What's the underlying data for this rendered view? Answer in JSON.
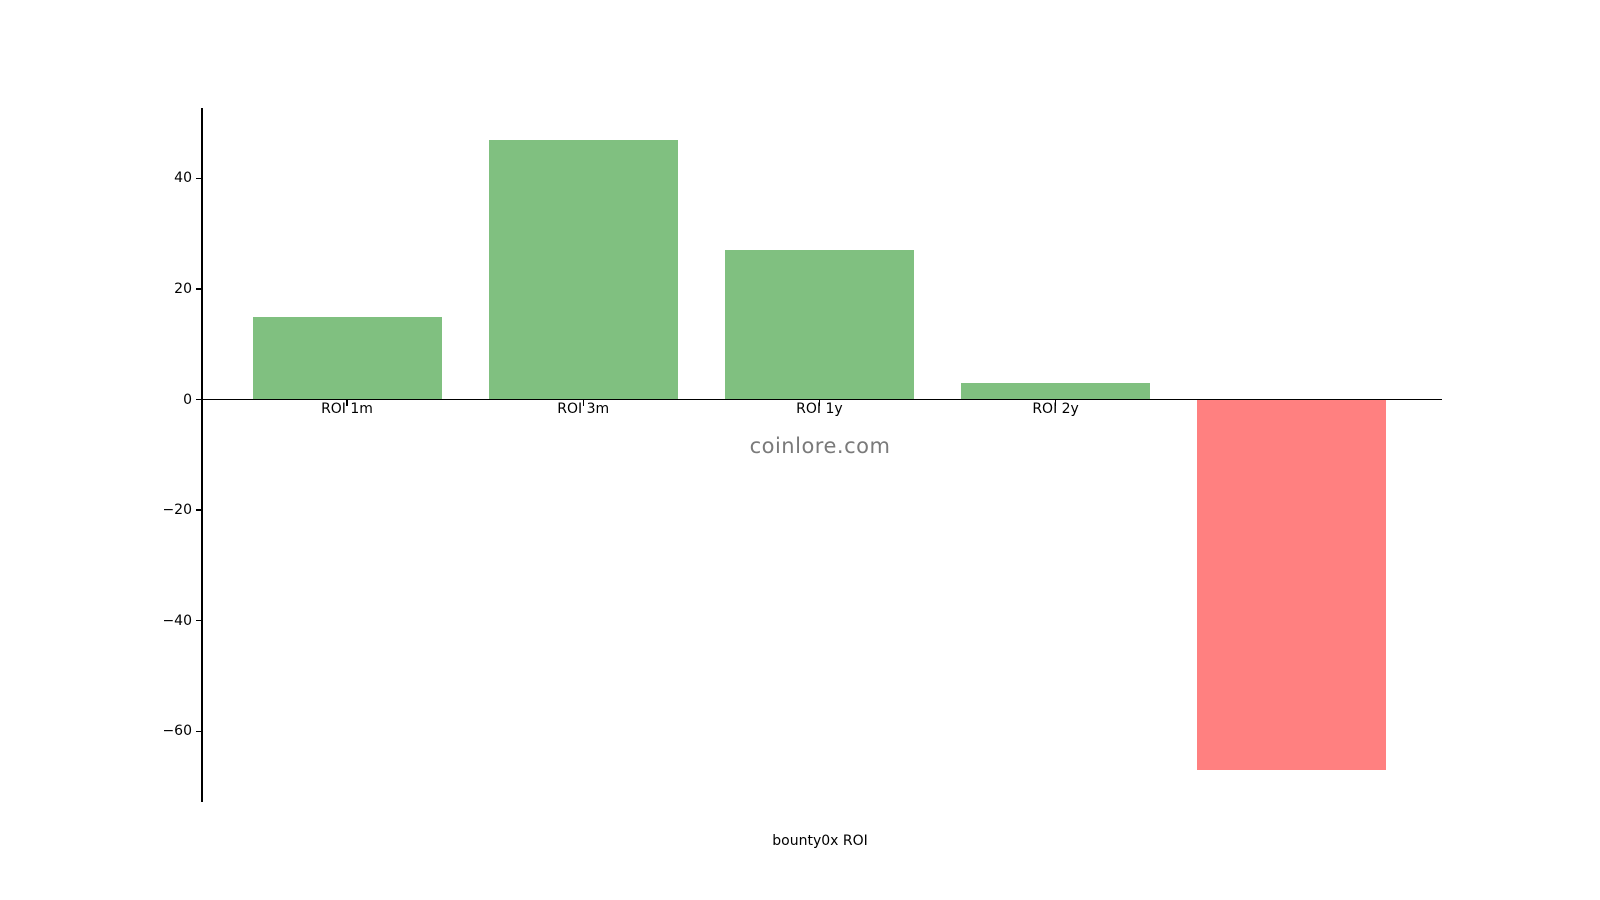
{
  "page": {
    "background": "#ffffff"
  },
  "watermark": {
    "text": "coinlore.com",
    "color": "#7a7a7a"
  },
  "chart_data": {
    "type": "bar",
    "title": "bounty0x ROI",
    "title_position": "bottom",
    "categories": [
      "ROI 1m",
      "ROI 3m",
      "ROI 1y",
      "ROI 2y",
      ""
    ],
    "values": [
      15,
      47,
      27,
      3,
      -67
    ],
    "bar_colors": [
      "#80c080",
      "#80c080",
      "#80c080",
      "#80c080",
      "#ff8080"
    ],
    "positive_color": "#80c080",
    "negative_color": "#ff8080",
    "axis_color": "#000000",
    "tick_label_color": "#000000",
    "yticks": [
      40,
      20,
      0,
      -20,
      -40,
      -60
    ],
    "ytick_labels": [
      "40",
      "20",
      "0",
      "−20",
      "−40",
      "−60"
    ],
    "ylim": [
      -72.7,
      52.7
    ],
    "xlabel": "",
    "ylabel": "",
    "grid": false,
    "legend": "none"
  }
}
